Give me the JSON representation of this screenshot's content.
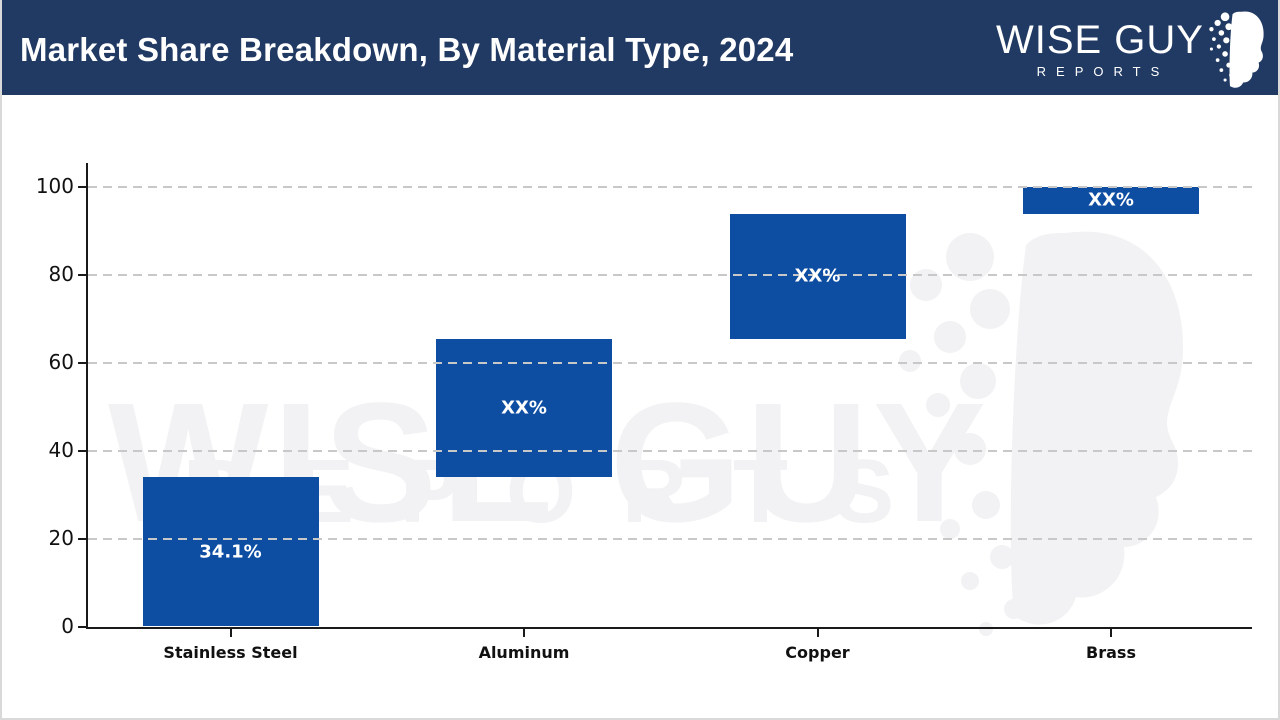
{
  "header": {
    "title": "Market Share Breakdown, By Material Type, 2024",
    "bg_color": "#213a63",
    "logo": {
      "wordmark": "WISE GUY",
      "subtext": "REPORTS"
    }
  },
  "watermark": {
    "wordmark": "WISE GUY",
    "subtext": "REPORTS"
  },
  "chart_data": {
    "type": "bar",
    "subtype": "waterfall",
    "title": "Market Share Breakdown, By Material Type, 2024",
    "categories": [
      "Stainless Steel",
      "Aluminum",
      "Copper",
      "Brass"
    ],
    "segments": [
      {
        "category": "Stainless Steel",
        "start": 0,
        "end": 34.1,
        "label": "34.1%"
      },
      {
        "category": "Aluminum",
        "start": 34.1,
        "end": 65.5,
        "label": "XX%"
      },
      {
        "category": "Copper",
        "start": 65.5,
        "end": 93.9,
        "label": "XX%"
      },
      {
        "category": "Brass",
        "start": 93.9,
        "end": 100,
        "label": "XX%"
      }
    ],
    "yticks": [
      0,
      20,
      40,
      60,
      80,
      100
    ],
    "ylim": [
      0,
      105.5
    ],
    "xlabel": "",
    "ylabel": "",
    "grid": {
      "axis": "y",
      "style": "dashed",
      "drawn_above_bars": true
    },
    "legend": null,
    "bar_color": "#0d4da2",
    "bar_label_color": "#ffffff",
    "grid_color": "#c8c8c8",
    "axis_color": "#1a1a1a"
  }
}
